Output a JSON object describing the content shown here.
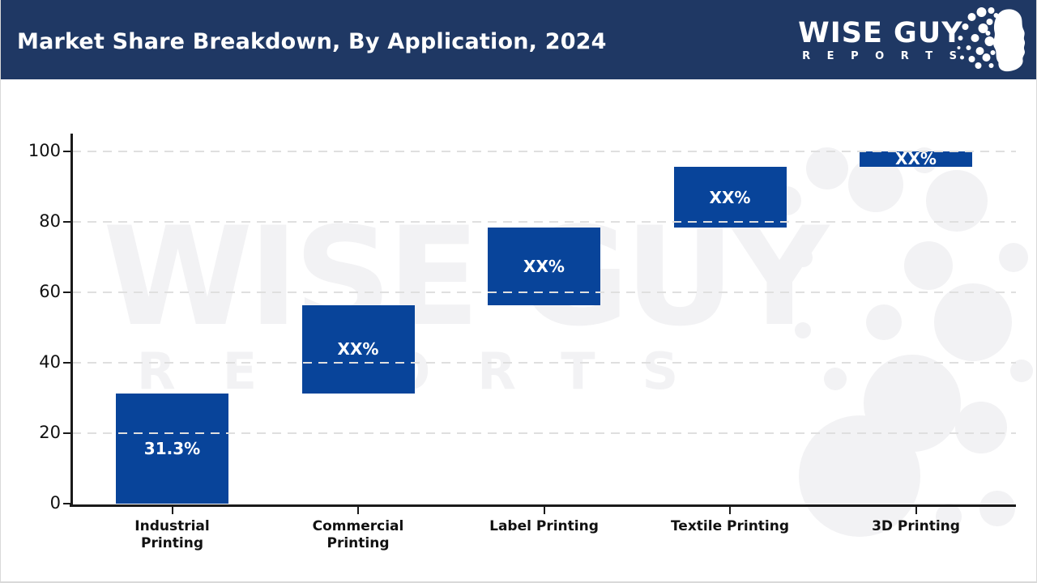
{
  "header": {
    "title": "Market Share Breakdown, By Application, 2024",
    "logo": {
      "line1": "WISE GUY",
      "line2": "R E P O R T S"
    }
  },
  "watermark": {
    "line1": "WISE GUY",
    "line2": "REPORTS"
  },
  "colors": {
    "header_bg": "#1f3864",
    "bar": "#08449a",
    "bar_label": "#ffffff",
    "axis": "#1a1a1a",
    "grid": "#dfdfdf",
    "watermark": "#f2f2f4"
  },
  "chart_data": {
    "type": "bar",
    "subtype": "waterfall",
    "title": "Market Share Breakdown, By Application, 2024",
    "xlabel": "",
    "ylabel": "",
    "ylim": [
      0,
      105
    ],
    "yticks": [
      0,
      20,
      40,
      60,
      80,
      100
    ],
    "grid": "horizontal-dashed",
    "legend": null,
    "categories": [
      "Industrial Printing",
      "Commercial Printing",
      "Label Printing",
      "Textile Printing",
      "3D Printing"
    ],
    "category_lines": [
      [
        "Industrial",
        "Printing"
      ],
      [
        "Commercial",
        "Printing"
      ],
      [
        "Label Printing"
      ],
      [
        "Textile Printing"
      ],
      [
        "3D Printing"
      ]
    ],
    "segments": [
      {
        "category": "Industrial Printing",
        "start": 0,
        "end": 31.3,
        "label": "31.3%"
      },
      {
        "category": "Commercial Printing",
        "start": 31.3,
        "end": 56.4,
        "label": "XX%"
      },
      {
        "category": "Label Printing",
        "start": 56.4,
        "end": 78.3,
        "label": "XX%"
      },
      {
        "category": "Textile Printing",
        "start": 78.3,
        "end": 95.7,
        "label": "XX%"
      },
      {
        "category": "3D Printing",
        "start": 95.7,
        "end": 100,
        "label": "XX%"
      }
    ]
  }
}
